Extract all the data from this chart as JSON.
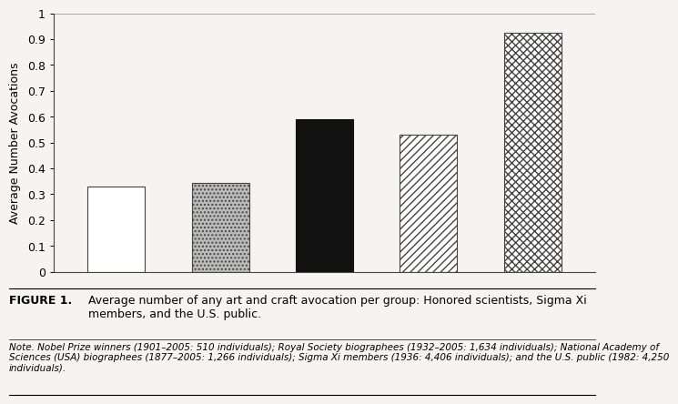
{
  "values": [
    0.33,
    0.345,
    0.59,
    0.53,
    0.925
  ],
  "bar_configs": [
    {
      "hatch": "",
      "facecolor": "white",
      "edgecolor": "#444444"
    },
    {
      "hatch": "....",
      "facecolor": "#bbbbbb",
      "edgecolor": "#444444"
    },
    {
      "hatch": "",
      "facecolor": "#111111",
      "edgecolor": "#111111"
    },
    {
      "hatch": "////",
      "facecolor": "white",
      "edgecolor": "#444444"
    },
    {
      "hatch": "xxxx",
      "facecolor": "white",
      "edgecolor": "#444444"
    }
  ],
  "ylabel": "Average Number Avocations",
  "ylim": [
    0,
    1.0
  ],
  "yticks": [
    0,
    0.1,
    0.2,
    0.3,
    0.4,
    0.5,
    0.6,
    0.7,
    0.8,
    0.9,
    1
  ],
  "ytick_labels": [
    "0",
    "0.1",
    "0.2",
    "0.3",
    "0.4",
    "0.5",
    "0.6",
    "0.7",
    "0.8",
    "0.9",
    "1"
  ],
  "bg_color": "#f5f4f0",
  "bar_width": 0.55,
  "figure1_label": "FIGURE 1.",
  "figure1_text": "Average number of any art and craft avocation per group: Honored scientists, Sigma Xi\nmembers, and the U.S. public.",
  "note_text": "Note. Nobel Prize winners (1901–2005: 510 individuals); Royal Society biographees (1932–2005: 1,634 individuals); National Academy of\nSciences (USA) biographees (1877–2005: 1,266 individuals); Sigma Xi members (1936: 4,406 individuals); and the U.S. public (1982: 4,250\nindividuals)."
}
